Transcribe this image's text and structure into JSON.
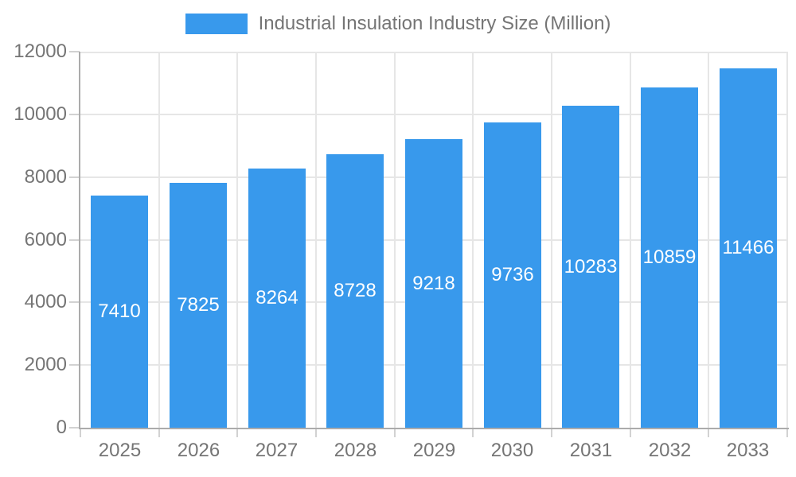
{
  "chart_data": {
    "type": "bar",
    "title": "Industrial Insulation Industry Size (Million)",
    "categories": [
      "2025",
      "2026",
      "2027",
      "2028",
      "2029",
      "2030",
      "2031",
      "2032",
      "2033"
    ],
    "values": [
      7410,
      7825,
      8264,
      8728,
      9218,
      9736,
      10283,
      10859,
      11466
    ],
    "xlabel": "",
    "ylabel": "",
    "ylim": [
      0,
      12000
    ],
    "yticks": [
      0,
      2000,
      4000,
      6000,
      8000,
      10000,
      12000
    ],
    "grid": true,
    "legend_position": "top",
    "colors": {
      "bar": "#3899ec",
      "grid": "#e6e6e6",
      "axis": "#ababab",
      "tick": "#d2d2d2",
      "text": "#757575",
      "value_label": "#ffffff"
    }
  }
}
